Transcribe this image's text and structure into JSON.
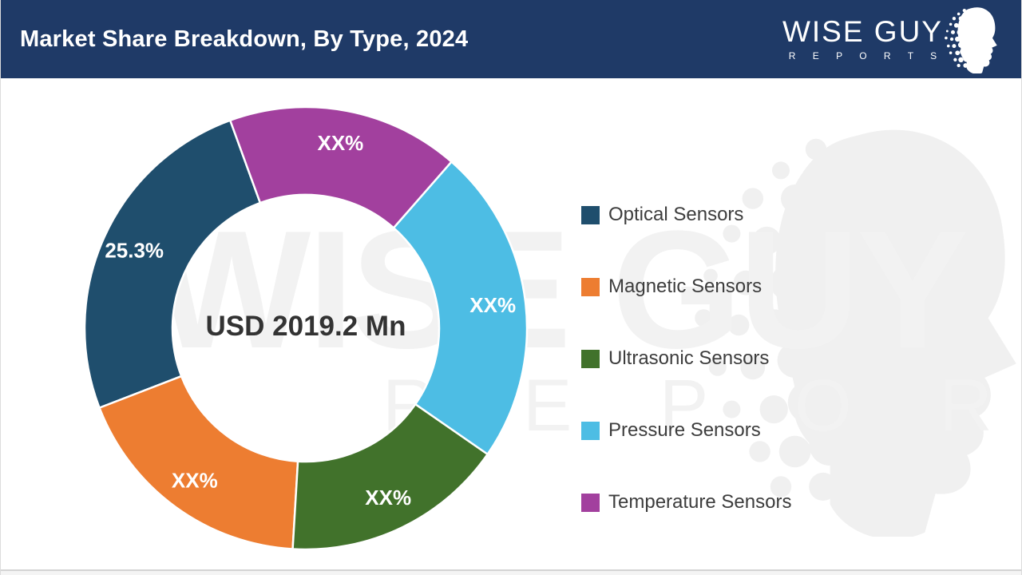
{
  "header": {
    "title": "Market Share Breakdown, By Type, 2024",
    "logo_line1": "WISE GUY",
    "logo_line2": "R E P O R T S"
  },
  "watermark": {
    "line1": "WISE GUY",
    "line2": "R E P O R T S"
  },
  "chart_data": {
    "type": "donut",
    "title": "Market Share Breakdown, By Type, 2024",
    "center_label": "USD 2019.2 Mn",
    "start_angle_deg": 110,
    "direction": "counterclockwise",
    "legend_position": "right",
    "segments": [
      {
        "name": "Optical Sensors",
        "slice_label": "25.3%",
        "value_pct": 25.3,
        "color": "#1f4e6d"
      },
      {
        "name": "Magnetic Sensors",
        "slice_label": "XX%",
        "value_pct": 18.2,
        "color": "#ed7d31"
      },
      {
        "name": "Ultrasonic Sensors",
        "slice_label": "XX%",
        "value_pct": 16.3,
        "color": "#41722b"
      },
      {
        "name": "Pressure Sensors",
        "slice_label": "XX%",
        "value_pct": 23.2,
        "color": "#4dbde4"
      },
      {
        "name": "Temperature Sensors",
        "slice_label": "XX%",
        "value_pct": 17.0,
        "color": "#a2409e"
      }
    ]
  },
  "colors": {
    "header_bg": "#1f3a67",
    "center_text": "#333333",
    "legend_text": "#3d3d3d",
    "slice_label_text": "#ffffff",
    "watermark": "#f2f2f2"
  }
}
